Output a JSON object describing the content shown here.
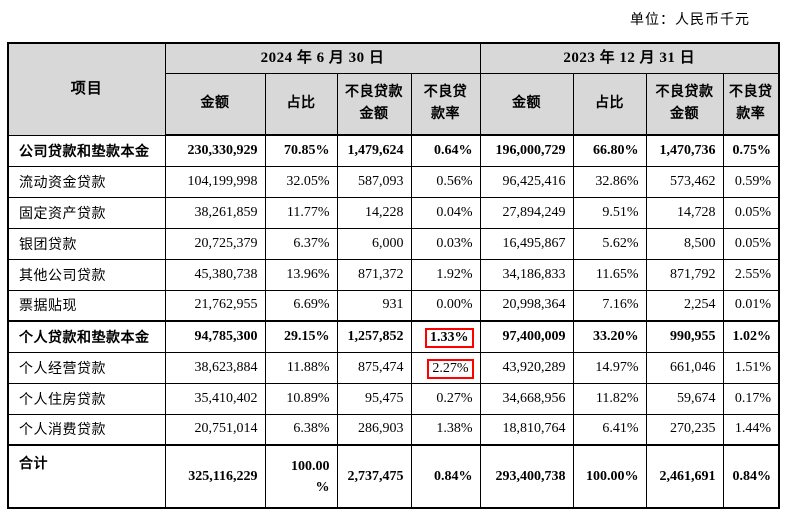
{
  "unit_label": "单位：人民币千元",
  "colors": {
    "header_bg": "#d8d8d8",
    "border": "#000000",
    "highlight_box": "#fe0000",
    "text": "#000000"
  },
  "table": {
    "item_header": "项目",
    "col_groups": [
      {
        "date": "2024 年 6 月 30 日",
        "columns": [
          "金额",
          "占比",
          "不良贷款\n金额",
          "不良贷\n款率"
        ]
      },
      {
        "date": "2023 年 12 月 31 日",
        "columns": [
          "金额",
          "占比",
          "不良贷款\n金额",
          "不良贷\n款率"
        ]
      }
    ],
    "rows": [
      {
        "label": "公司贷款和垫款本金",
        "bold": true,
        "section": false,
        "boxed": [],
        "cells": [
          "230,330,929",
          "70.85%",
          "1,479,624",
          "0.64%",
          "196,000,729",
          "66.80%",
          "1,470,736",
          "0.75%"
        ]
      },
      {
        "label": "流动资金贷款",
        "bold": false,
        "section": false,
        "boxed": [],
        "cells": [
          "104,199,998",
          "32.05%",
          "587,093",
          "0.56%",
          "96,425,416",
          "32.86%",
          "573,462",
          "0.59%"
        ]
      },
      {
        "label": "固定资产贷款",
        "bold": false,
        "section": false,
        "boxed": [],
        "cells": [
          "38,261,859",
          "11.77%",
          "14,228",
          "0.04%",
          "27,894,249",
          "9.51%",
          "14,728",
          "0.05%"
        ]
      },
      {
        "label": "银团贷款",
        "bold": false,
        "section": false,
        "boxed": [],
        "cells": [
          "20,725,379",
          "6.37%",
          "6,000",
          "0.03%",
          "16,495,867",
          "5.62%",
          "8,500",
          "0.05%"
        ]
      },
      {
        "label": "其他公司贷款",
        "bold": false,
        "section": false,
        "boxed": [],
        "cells": [
          "45,380,738",
          "13.96%",
          "871,372",
          "1.92%",
          "34,186,833",
          "11.65%",
          "871,792",
          "2.55%"
        ]
      },
      {
        "label": "票据贴现",
        "bold": false,
        "section": false,
        "boxed": [],
        "cells": [
          "21,762,955",
          "6.69%",
          "931",
          "0.00%",
          "20,998,364",
          "7.16%",
          "2,254",
          "0.01%"
        ]
      },
      {
        "label": "个人贷款和垫款本金",
        "bold": true,
        "section": true,
        "boxed": [
          3
        ],
        "cells": [
          "94,785,300",
          "29.15%",
          "1,257,852",
          "1.33%",
          "97,400,009",
          "33.20%",
          "990,955",
          "1.02%"
        ]
      },
      {
        "label": "个人经营贷款",
        "bold": false,
        "section": false,
        "boxed": [
          3
        ],
        "cells": [
          "38,623,884",
          "11.88%",
          "875,474",
          "2.27%",
          "43,920,289",
          "14.97%",
          "661,046",
          "1.51%"
        ]
      },
      {
        "label": "个人住房贷款",
        "bold": false,
        "section": false,
        "boxed": [],
        "cells": [
          "35,410,402",
          "10.89%",
          "95,475",
          "0.27%",
          "34,668,956",
          "11.82%",
          "59,674",
          "0.17%"
        ]
      },
      {
        "label": "个人消费贷款",
        "bold": false,
        "section": false,
        "boxed": [],
        "cells": [
          "20,751,014",
          "6.38%",
          "286,903",
          "1.38%",
          "18,810,764",
          "6.41%",
          "270,235",
          "1.44%"
        ]
      },
      {
        "label": "合计",
        "bold": true,
        "section": true,
        "total": true,
        "boxed": [],
        "cells": [
          "325,116,229",
          "100.00\n%",
          "2,737,475",
          "0.84%",
          "293,400,738",
          "100.00%",
          "2,461,691",
          "0.84%"
        ]
      }
    ]
  }
}
